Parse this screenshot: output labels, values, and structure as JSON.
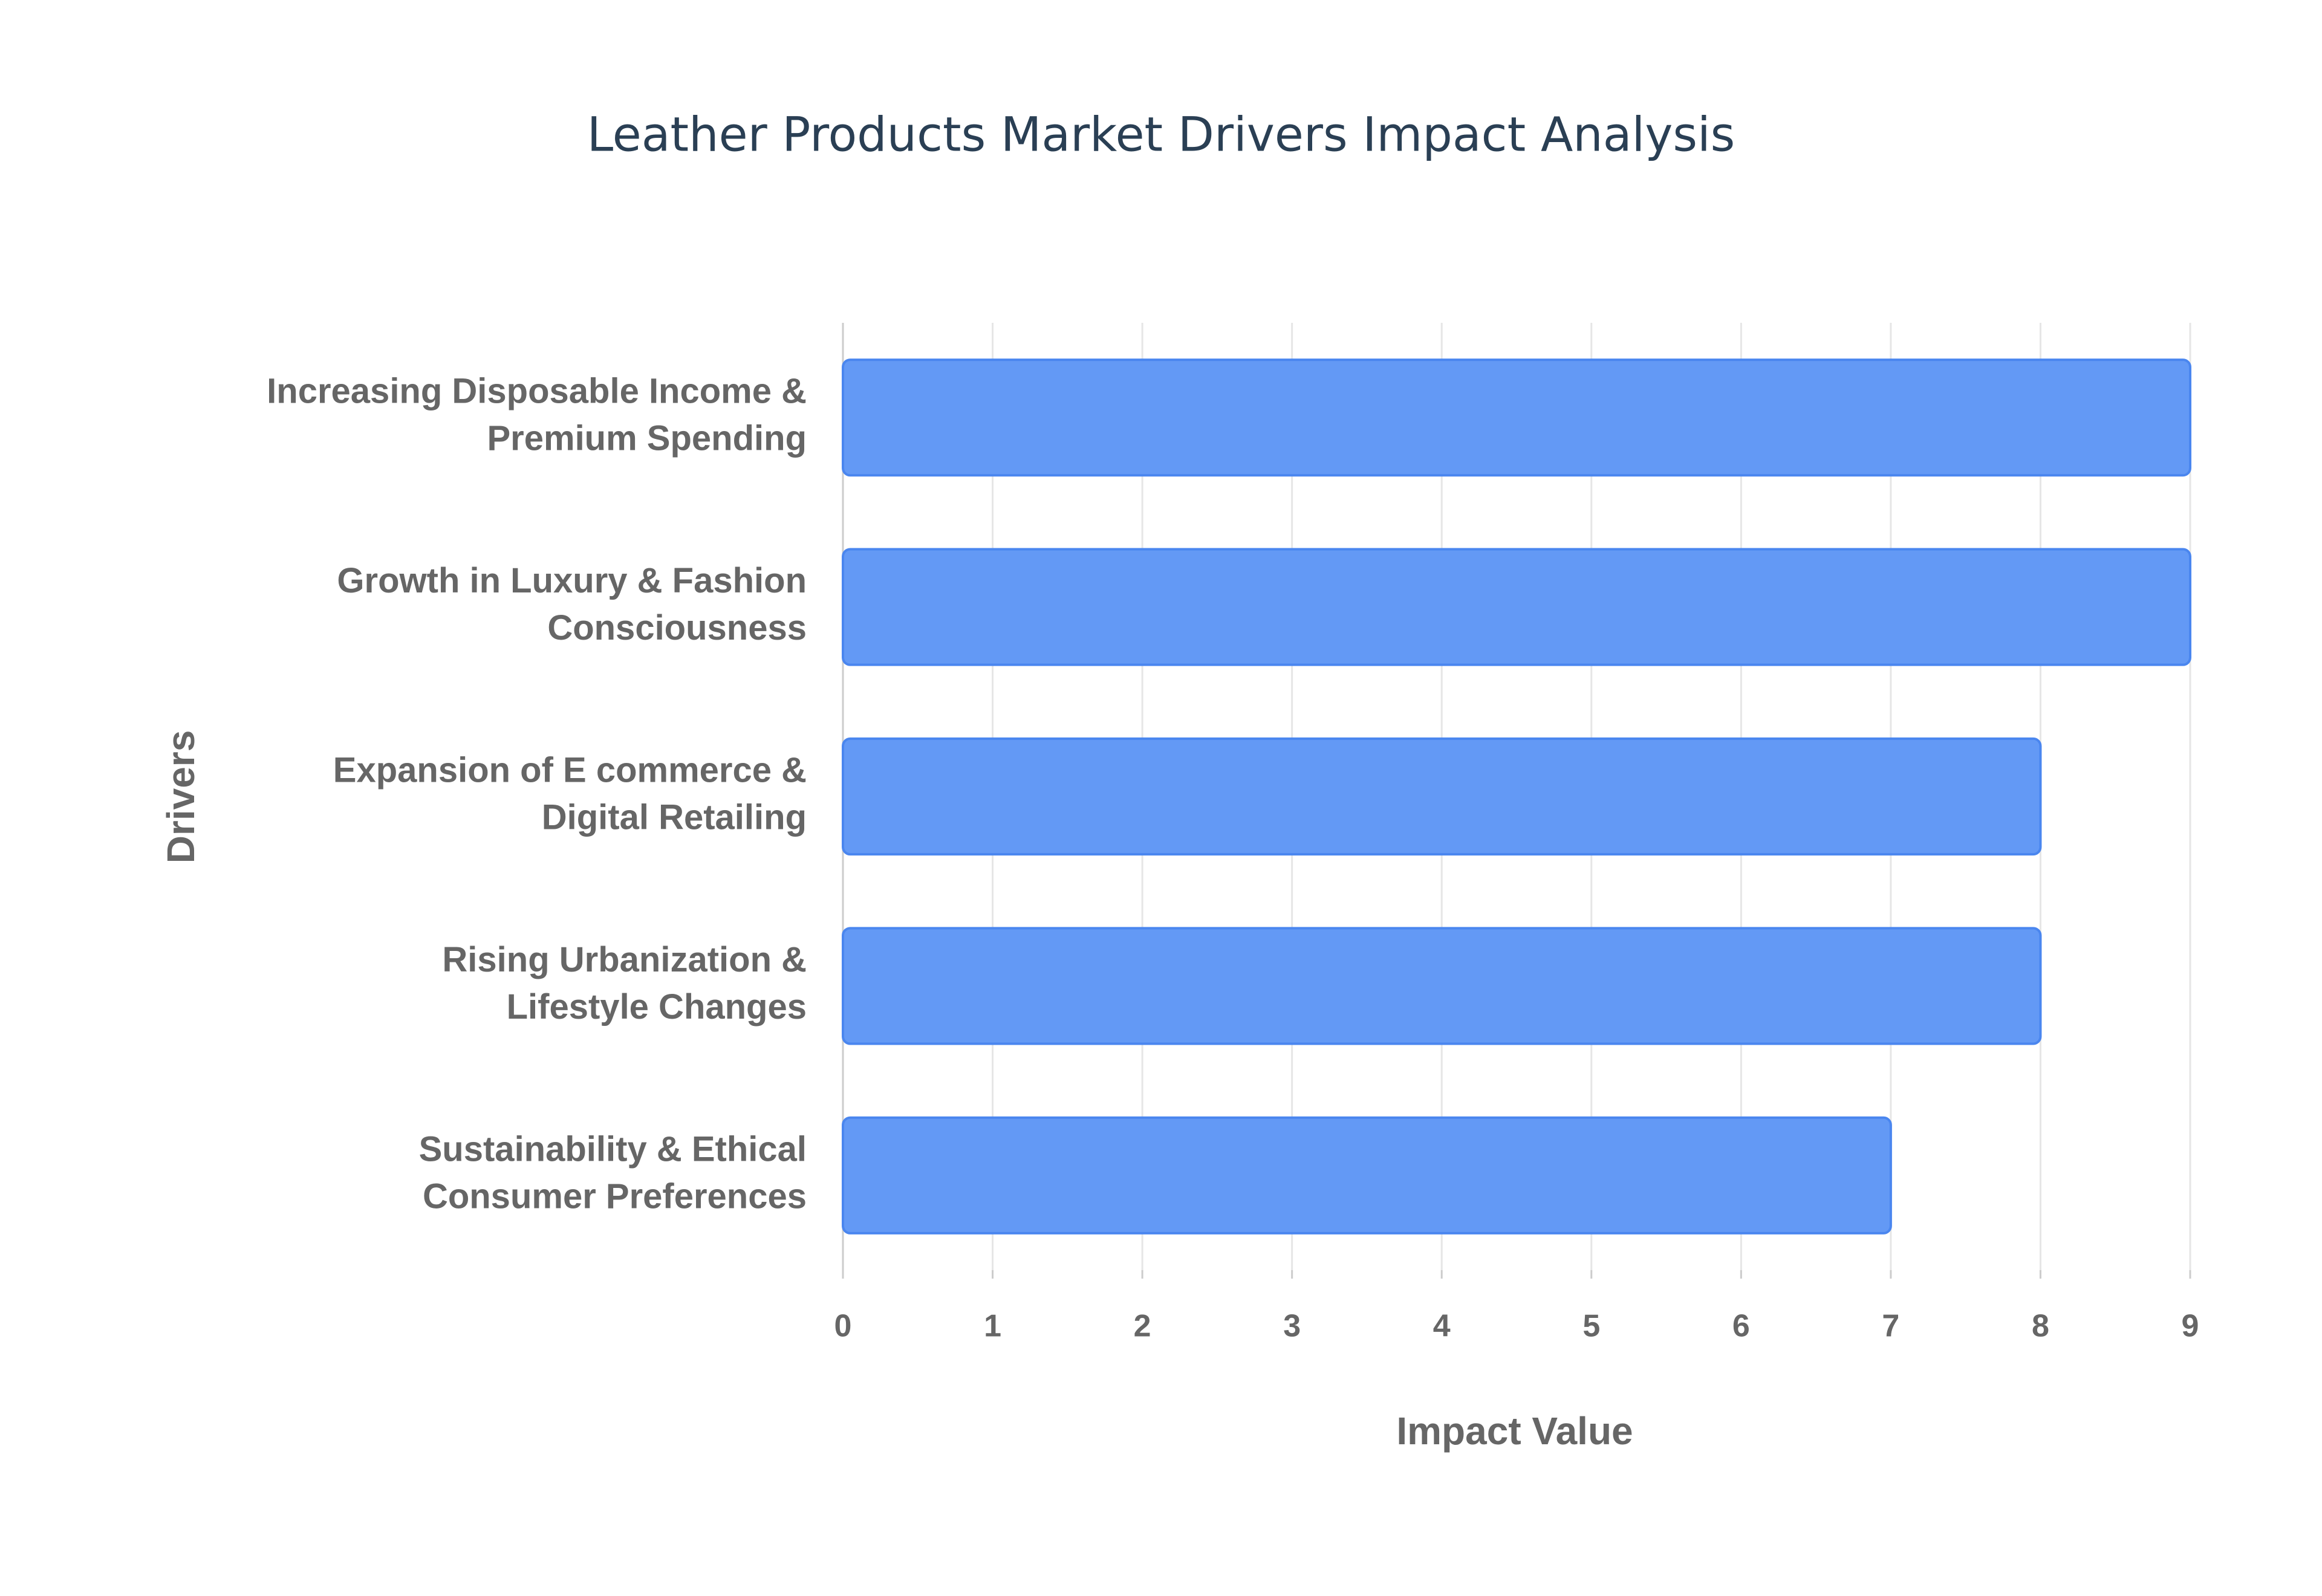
{
  "chart_data": {
    "type": "hbar",
    "title": "Leather Products Market Drivers Impact Analysis",
    "categories": [
      "Increasing Disposable Income & Premium Spending",
      "Growth in Luxury & Fashion Consciousness",
      "Expansion of E commerce & Digital Retailing",
      "Rising Urbanization & Lifestyle Changes",
      "Sustainability & Ethical Consumer Preferences"
    ],
    "values": [
      9,
      9,
      8,
      8,
      7
    ],
    "color": "#6399f5",
    "x_label": "Impact Value",
    "y_label": "Drivers",
    "xlim": [
      0,
      9
    ],
    "xticks": [
      0,
      1,
      2,
      3,
      4,
      5,
      6,
      7,
      8,
      9
    ],
    "grid": true
  }
}
